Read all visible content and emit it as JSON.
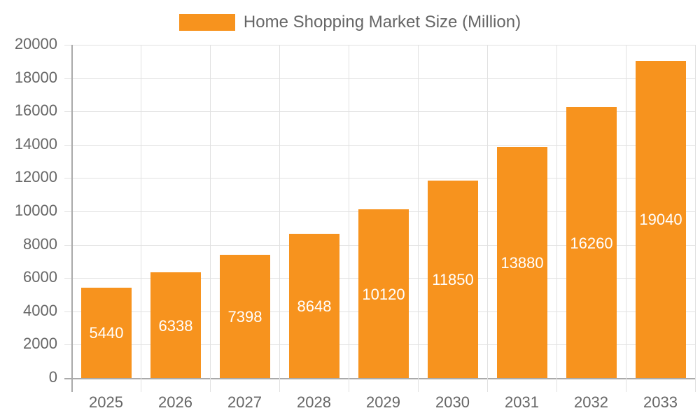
{
  "legend": {
    "label": "Home Shopping Market Size (Million)",
    "color": "#f7931e"
  },
  "axes": {
    "y_ticks": [
      "20000",
      "18000",
      "16000",
      "14000",
      "12000",
      "10000",
      "8000",
      "6000",
      "4000",
      "2000",
      "0"
    ],
    "x_ticks": [
      "2025",
      "2026",
      "2027",
      "2028",
      "2029",
      "2030",
      "2031",
      "2032",
      "2033"
    ]
  },
  "bars": [
    {
      "year": "2025",
      "value": 5440,
      "label": "5440"
    },
    {
      "year": "2026",
      "value": 6338,
      "label": "6338"
    },
    {
      "year": "2027",
      "value": 7398,
      "label": "7398"
    },
    {
      "year": "2028",
      "value": 8648,
      "label": "8648"
    },
    {
      "year": "2029",
      "value": 10120,
      "label": "10120"
    },
    {
      "year": "2030",
      "value": 11850,
      "label": "11850"
    },
    {
      "year": "2031",
      "value": 13880,
      "label": "13880"
    },
    {
      "year": "2032",
      "value": 16260,
      "label": "16260"
    },
    {
      "year": "2033",
      "value": 19040,
      "label": "19040"
    }
  ],
  "chart_data": {
    "type": "bar",
    "title": "",
    "categories": [
      "2025",
      "2026",
      "2027",
      "2028",
      "2029",
      "2030",
      "2031",
      "2032",
      "2033"
    ],
    "series": [
      {
        "name": "Home Shopping Market Size (Million)",
        "values": [
          5440,
          6338,
          7398,
          8648,
          10120,
          11850,
          13880,
          16260,
          19040
        ]
      }
    ],
    "xlabel": "",
    "ylabel": "",
    "ylim": [
      0,
      20000
    ],
    "y_tick_step": 2000,
    "grid": true,
    "legend_position": "top",
    "data_labels": true,
    "bar_color": "#f7931e"
  }
}
